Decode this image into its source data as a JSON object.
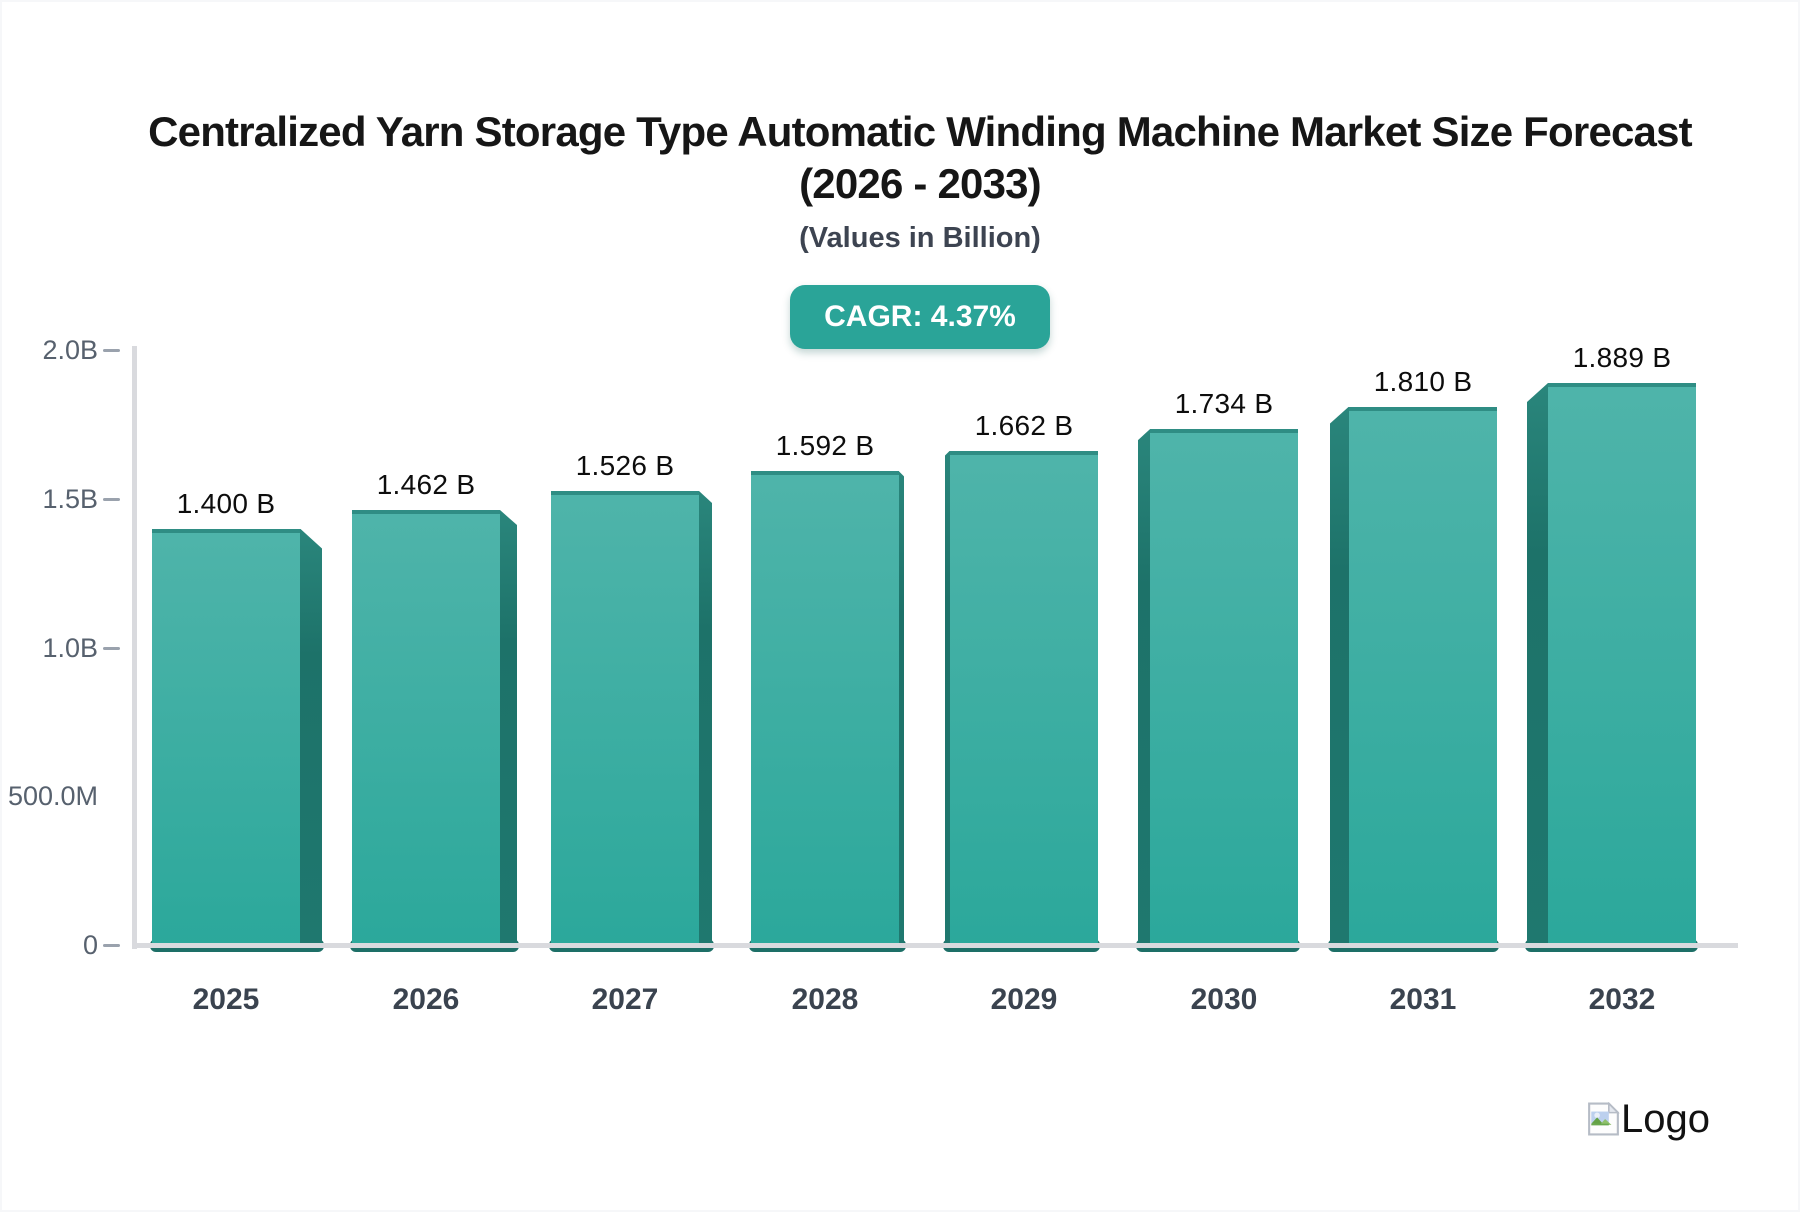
{
  "header": {
    "title_line1": "Centralized Yarn Storage Type Automatic Winding Machine Market Size Forecast",
    "title_line2": "(2026 - 2033)",
    "subtitle": "(Values in Billion)",
    "cagr_badge": "CAGR: 4.37%"
  },
  "logo": {
    "text": "Logo",
    "icon": "broken-image-icon"
  },
  "colors": {
    "accent_teal": "#2aa498",
    "bar_face_top": "#4fb4aa",
    "bar_face_bottom": "#2ba89b",
    "bar_side": "#1f786f",
    "axis_line": "#d9dade",
    "tick": "#9aa2ad",
    "y_label": "#57616e",
    "x_label": "#3a434f",
    "value_label": "#0d0d0d",
    "badge_text": "#ffffff"
  },
  "chart_data": {
    "type": "bar",
    "title": "Centralized Yarn Storage Type Automatic Winding Machine Market Size Forecast (2026 - 2033)",
    "subtitle": "(Values in Billion)",
    "annotation": "CAGR: 4.37%",
    "unit": "Billion",
    "categories": [
      "2025",
      "2026",
      "2027",
      "2028",
      "2029",
      "2030",
      "2031",
      "2032"
    ],
    "values": [
      1.4,
      1.462,
      1.526,
      1.592,
      1.662,
      1.734,
      1.81,
      1.889
    ],
    "value_labels": [
      "1.400 B",
      "1.462 B",
      "1.526 B",
      "1.592 B",
      "1.662 B",
      "1.734 B",
      "1.810 B",
      "1.889 B"
    ],
    "xlabel": "",
    "ylabel": "",
    "ylim": [
      0,
      2.0
    ],
    "y_ticks": [
      {
        "label": "2.0B",
        "value": 2.0,
        "tick": true
      },
      {
        "label": "1.5B",
        "value": 1.5,
        "tick": true
      },
      {
        "label": "1.0B",
        "value": 1.0,
        "tick": true
      },
      {
        "label": "500.0M",
        "value": 0.5,
        "tick": false
      },
      {
        "label": "0",
        "value": 0.0,
        "tick": true
      }
    ],
    "grid": false,
    "legend_position": "none",
    "bar_style": "3d-pseudo-perspective"
  }
}
